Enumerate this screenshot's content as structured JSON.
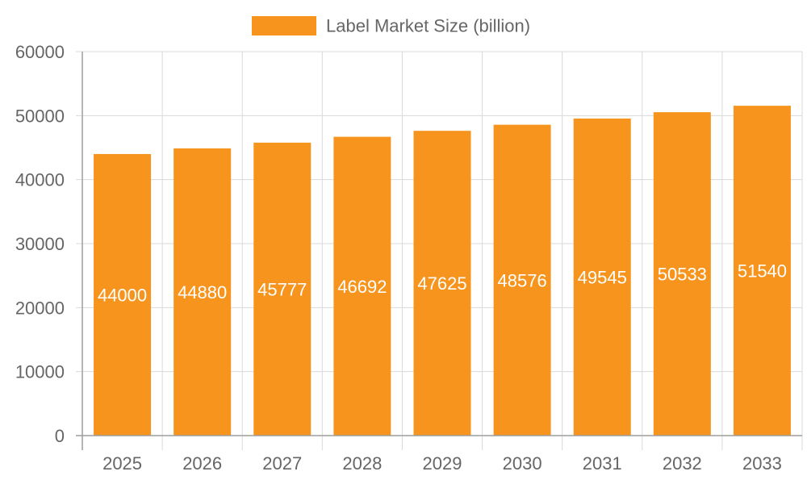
{
  "chart_data": {
    "type": "bar",
    "categories": [
      "2025",
      "2026",
      "2027",
      "2028",
      "2029",
      "2030",
      "2031",
      "2032",
      "2033"
    ],
    "series": [
      {
        "name": "Label Market Size (billion)",
        "values": [
          44000,
          44880,
          45777,
          46692,
          47625,
          48576,
          49545,
          50533,
          51540
        ],
        "color": "#f7941d"
      }
    ],
    "ylim": [
      0,
      60000
    ],
    "yticks": [
      0,
      10000,
      20000,
      30000,
      40000,
      50000,
      60000
    ],
    "grid": true,
    "legend_position": "top-center",
    "data_labels": true
  }
}
